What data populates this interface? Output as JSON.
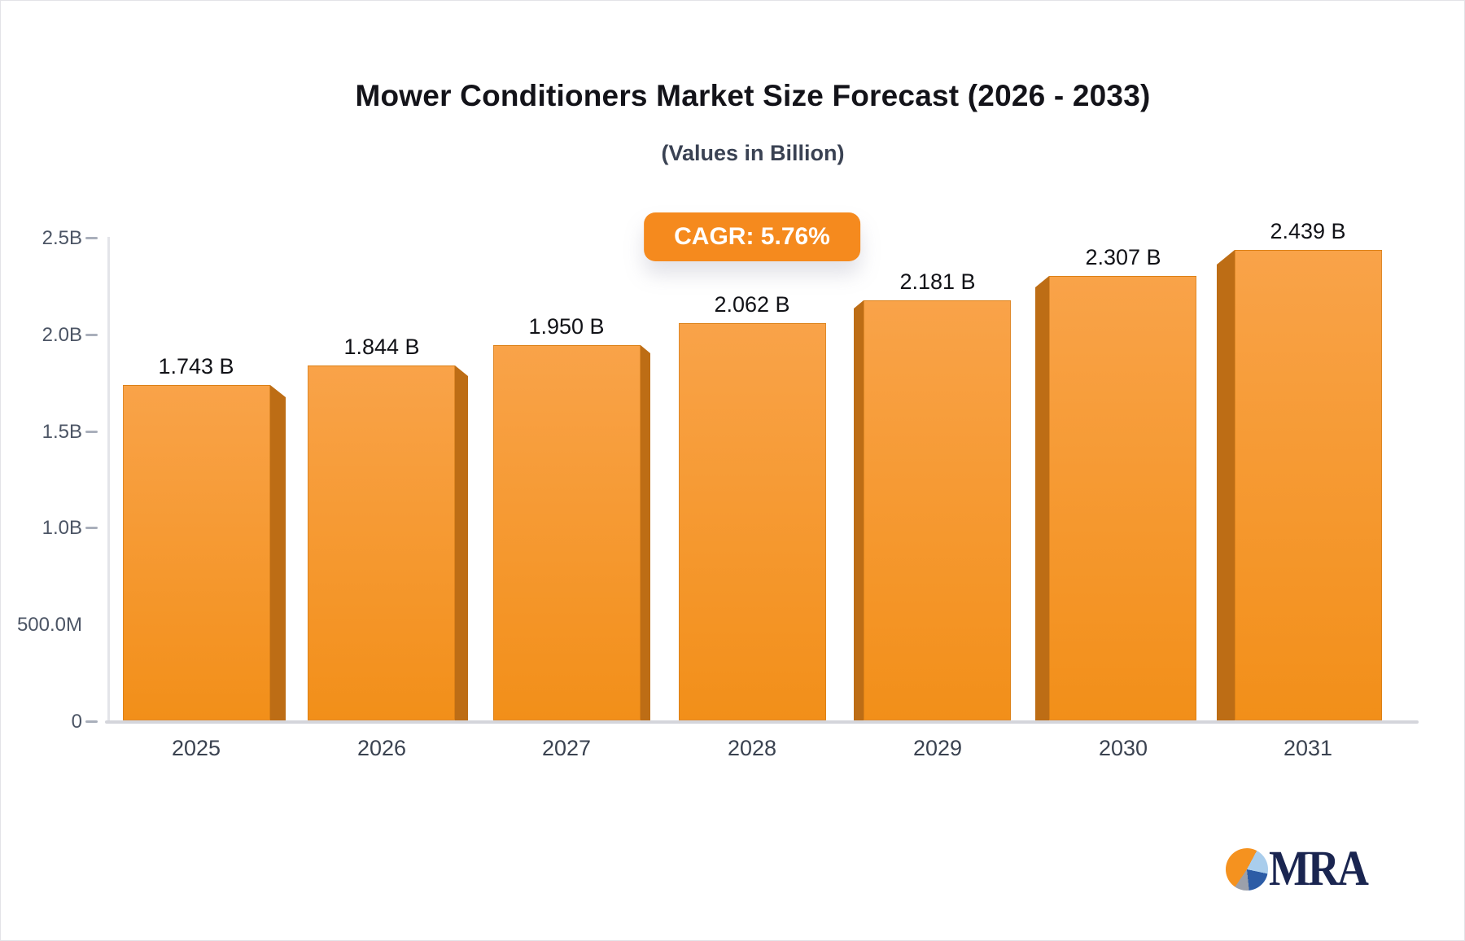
{
  "chart_data": {
    "type": "bar",
    "title": "Mower Conditioners Market Size Forecast (2026 - 2033)",
    "subtitle": "(Values in Billion)",
    "cagr_label": "CAGR: 5.76%",
    "categories": [
      "2025",
      "2026",
      "2027",
      "2028",
      "2029",
      "2030",
      "2031"
    ],
    "values": [
      1.743,
      1.844,
      1.95,
      2.062,
      2.181,
      2.307,
      2.439
    ],
    "value_labels": [
      "1.743 B",
      "1.844 B",
      "1.950 B",
      "2.062 B",
      "2.181 B",
      "2.307 B",
      "2.439 B"
    ],
    "unit": "Billion USD",
    "xlabel": "",
    "ylabel": "",
    "ylim": [
      0,
      2.5
    ],
    "grid": false,
    "legend": false,
    "y_ticks": [
      {
        "label": "2.5B",
        "value": 2.5,
        "tick": true
      },
      {
        "label": "2.0B",
        "value": 2.0,
        "tick": true
      },
      {
        "label": "1.5B",
        "value": 1.5,
        "tick": true
      },
      {
        "label": "1.0B",
        "value": 1.0,
        "tick": true
      },
      {
        "label": "500.0M",
        "value": 0.5,
        "tick": false
      },
      {
        "label": "0",
        "value": 0,
        "tick": true
      }
    ],
    "colors": {
      "bar_face_top": "#f9a349",
      "bar_face_bottom": "#f28f19",
      "bar_side": "#bd6d15",
      "badge_bg": "#f58a1e",
      "badge_text": "#ffffff",
      "axis_line": "#e3e4e9",
      "baseline": "#d4d5db"
    }
  },
  "branding": {
    "logo_text": "MRA",
    "logo_pie_colors": [
      "#f5921f",
      "#a9cdec",
      "#2c5ca6",
      "#9ba0ab"
    ]
  }
}
